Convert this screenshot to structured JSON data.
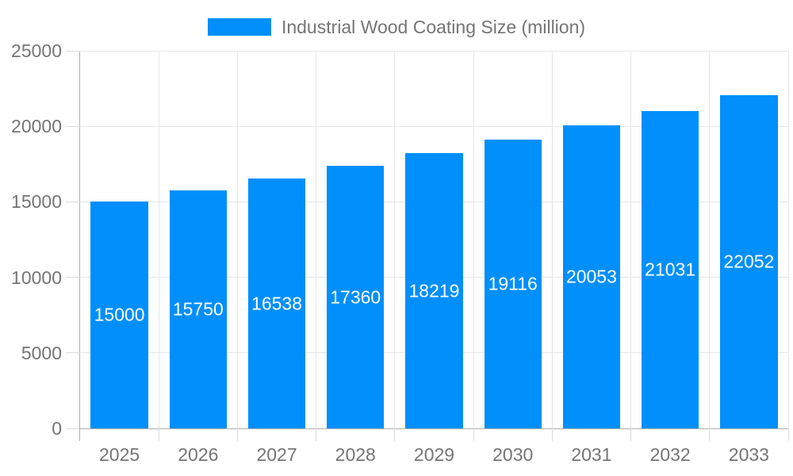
{
  "legend": {
    "label": "Industrial Wood Coating Size (million)"
  },
  "chart_data": {
    "type": "bar",
    "title": "Industrial Wood Coating Size (million)",
    "categories": [
      "2025",
      "2026",
      "2027",
      "2028",
      "2029",
      "2030",
      "2031",
      "2032",
      "2033"
    ],
    "values": [
      15000,
      15750,
      16538,
      17360,
      18219,
      19116,
      20053,
      21031,
      22052
    ],
    "xlabel": "",
    "ylabel": "",
    "ylim": [
      0,
      25000
    ],
    "yticks": [
      0,
      5000,
      10000,
      15000,
      20000,
      25000
    ],
    "grid": true,
    "legend_position": "top",
    "value_label_position": "inside-center",
    "colors": {
      "bar": "#008FFB",
      "value_label": "#FFFFFF",
      "axis_text": "#757575",
      "grid_line": "#E6E6E6",
      "axis_line": "#B1B1B1",
      "tick_line": "#DCDCDC"
    }
  }
}
